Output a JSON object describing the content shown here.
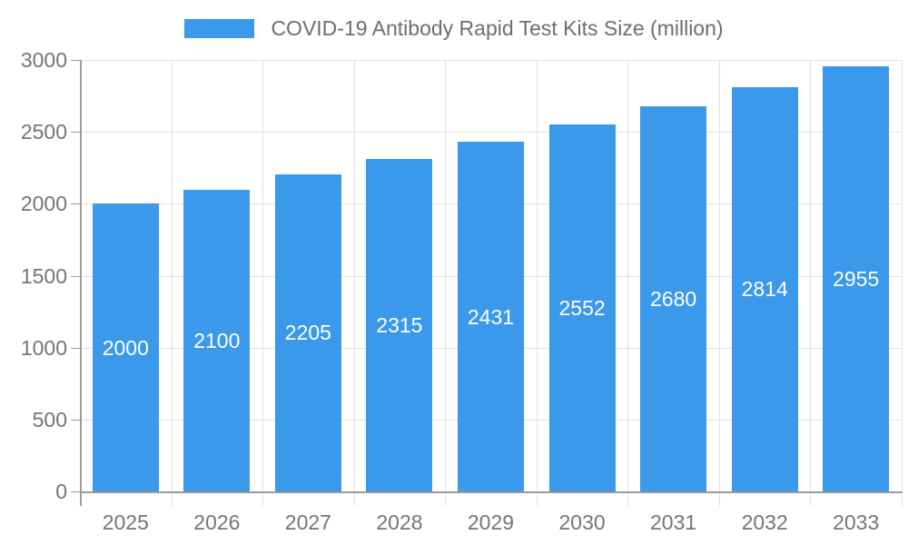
{
  "legend": {
    "label": "COVID-19 Antibody Rapid Test Kits Size (million)"
  },
  "chart_data": {
    "type": "bar",
    "title": "COVID-19 Antibody Rapid Test Kits Size (million)",
    "categories": [
      "2025",
      "2026",
      "2027",
      "2028",
      "2029",
      "2030",
      "2031",
      "2032",
      "2033"
    ],
    "values": [
      2000,
      2100,
      2205,
      2315,
      2431,
      2552,
      2680,
      2814,
      2955
    ],
    "xlabel": "",
    "ylabel": "",
    "ylim": [
      0,
      3000
    ],
    "yticks": [
      0,
      500,
      1000,
      1500,
      2000,
      2500,
      3000
    ],
    "grid": true,
    "legend_position": "top",
    "bar_labels_inside": true,
    "colors": {
      "bar": "#3B99EC",
      "bar_label": "#FFFFFF",
      "axis_line": "#9B9B9B",
      "gridline": "#E2E2E2",
      "tick_text": "#757575",
      "legend_text": "#6E6E6E"
    }
  }
}
